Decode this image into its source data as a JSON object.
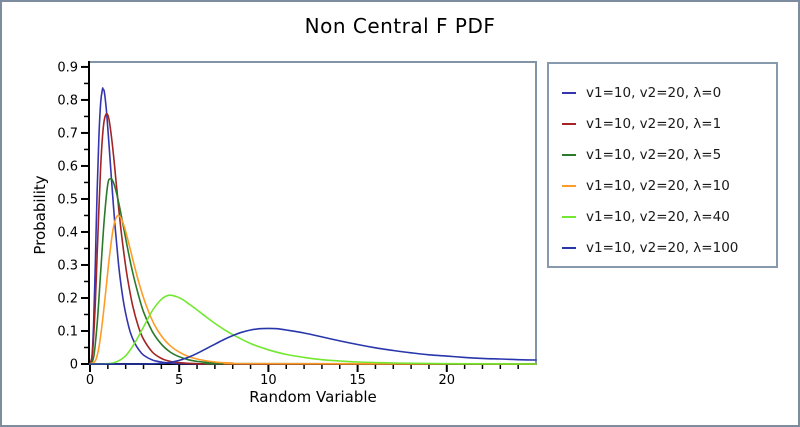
{
  "window": {
    "border_color": "#7e8ca0",
    "background": "#ffffff"
  },
  "chart_data": {
    "type": "line",
    "title": "Non Central F PDF",
    "xlabel": "Random Variable",
    "ylabel": "Probability",
    "xlim": [
      0,
      25
    ],
    "ylim": [
      0,
      0.918
    ],
    "x_major_ticks": [
      0,
      5,
      10,
      15,
      20
    ],
    "x_tick_labels": [
      "0",
      "5",
      "10",
      "15",
      "20"
    ],
    "x_minor_tick_step": 1,
    "y_major_ticks": [
      0,
      0.1,
      0.2,
      0.3,
      0.4,
      0.5,
      0.6,
      0.7,
      0.8,
      0.9
    ],
    "y_tick_labels": [
      "0",
      "0.1",
      "0.2",
      "0.3",
      "0.4",
      "0.5",
      "0.6",
      "0.7",
      "0.8",
      "0.9"
    ],
    "y_minor_tick_step": 0.05,
    "grid": false,
    "legend_position": "right",
    "frame_color": "#8294a8",
    "axis_color": "#000000",
    "series": [
      {
        "name": "v1=10, v2=20, λ=0",
        "lambda": 0,
        "color": "#3535ad",
        "x": [
          0,
          0.1,
          0.2,
          0.3,
          0.4,
          0.5,
          0.6,
          0.7,
          0.73,
          0.8,
          0.9,
          1.0,
          1.1,
          1.2,
          1.4,
          1.6,
          1.8,
          2.0,
          2.25,
          2.5,
          2.75,
          3.0,
          3.5,
          4.0,
          4.5,
          5.0,
          6.0,
          8.0,
          25
        ],
        "y": [
          0,
          0.015,
          0.12,
          0.311,
          0.52,
          0.688,
          0.793,
          0.833,
          0.833,
          0.825,
          0.779,
          0.715,
          0.64,
          0.563,
          0.419,
          0.303,
          0.216,
          0.153,
          0.098,
          0.064,
          0.042,
          0.027,
          0.012,
          0.006,
          0.003,
          0.001,
          0.0,
          0.0,
          0
        ]
      },
      {
        "name": "v1=10, v2=20, λ=1",
        "lambda": 1,
        "color": "#a22424",
        "x": [
          0,
          0.15,
          0.3,
          0.45,
          0.6,
          0.75,
          0.9,
          1.05,
          1.2,
          1.35,
          1.5,
          1.7,
          1.9,
          2.1,
          2.4,
          2.7,
          3.0,
          3.5,
          4.0,
          4.5,
          5.0,
          6.0,
          8.0,
          25
        ],
        "y": [
          0,
          0.04,
          0.19,
          0.4,
          0.6,
          0.72,
          0.757,
          0.745,
          0.69,
          0.615,
          0.53,
          0.425,
          0.335,
          0.26,
          0.175,
          0.115,
          0.075,
          0.036,
          0.017,
          0.008,
          0.004,
          0.001,
          0.0,
          0
        ]
      },
      {
        "name": "v1=10, v2=20, λ=5",
        "lambda": 5,
        "color": "#2a7a2a",
        "x": [
          0,
          0.2,
          0.4,
          0.6,
          0.8,
          1.0,
          1.15,
          1.3,
          1.5,
          1.7,
          2.0,
          2.3,
          2.6,
          3.0,
          3.5,
          4.0,
          4.5,
          5.0,
          5.5,
          6.0,
          7.0,
          8.0,
          25
        ],
        "y": [
          0,
          0.02,
          0.12,
          0.28,
          0.44,
          0.545,
          0.561,
          0.552,
          0.515,
          0.465,
          0.38,
          0.3,
          0.232,
          0.158,
          0.098,
          0.06,
          0.036,
          0.022,
          0.013,
          0.008,
          0.003,
          0.001,
          0
        ]
      },
      {
        "name": "v1=10, v2=20, λ=10",
        "lambda": 10,
        "color": "#ff9c28",
        "x": [
          0,
          0.3,
          0.5,
          0.7,
          0.9,
          1.1,
          1.3,
          1.5,
          1.7,
          1.9,
          2.2,
          2.5,
          2.8,
          3.2,
          3.6,
          4.0,
          4.5,
          5.0,
          5.5,
          6.0,
          7.0,
          8.0,
          9.0,
          25
        ],
        "y": [
          0,
          0.01,
          0.05,
          0.13,
          0.23,
          0.33,
          0.41,
          0.447,
          0.445,
          0.42,
          0.36,
          0.295,
          0.235,
          0.17,
          0.12,
          0.085,
          0.055,
          0.036,
          0.023,
          0.015,
          0.006,
          0.003,
          0.001,
          0
        ]
      },
      {
        "name": "v1=10, v2=20, λ=40",
        "lambda": 40,
        "color": "#72e830",
        "x": [
          0,
          1.0,
          1.5,
          2.0,
          2.5,
          3.0,
          3.5,
          4.0,
          4.4,
          4.8,
          5.2,
          5.6,
          6.0,
          6.5,
          7.0,
          7.5,
          8.0,
          9.0,
          10.0,
          11.0,
          12.0,
          13.0,
          14.0,
          15.0,
          17.0,
          20.0,
          25.0
        ],
        "y": [
          0,
          0.001,
          0.007,
          0.025,
          0.063,
          0.112,
          0.162,
          0.196,
          0.208,
          0.205,
          0.195,
          0.18,
          0.164,
          0.143,
          0.123,
          0.105,
          0.089,
          0.062,
          0.043,
          0.029,
          0.02,
          0.013,
          0.009,
          0.006,
          0.003,
          0.001,
          0.0
        ]
      },
      {
        "name": "v1=10, v2=20, λ=100",
        "lambda": 100,
        "color": "#2836ab",
        "x": [
          0,
          3.0,
          4.0,
          4.5,
          5.0,
          5.5,
          6.0,
          6.5,
          7.0,
          7.5,
          8.0,
          8.5,
          9.0,
          9.5,
          10.0,
          10.5,
          11.0,
          12.0,
          13.0,
          14.0,
          15.0,
          16.0,
          17.0,
          18.0,
          19.0,
          20.0,
          21.0,
          22.0,
          23.0,
          24.0,
          25.0
        ],
        "y": [
          0,
          0.0,
          0.002,
          0.005,
          0.011,
          0.02,
          0.032,
          0.046,
          0.06,
          0.074,
          0.086,
          0.096,
          0.103,
          0.107,
          0.108,
          0.107,
          0.103,
          0.094,
          0.082,
          0.07,
          0.059,
          0.049,
          0.041,
          0.034,
          0.028,
          0.024,
          0.02,
          0.017,
          0.015,
          0.013,
          0.012
        ]
      }
    ]
  }
}
